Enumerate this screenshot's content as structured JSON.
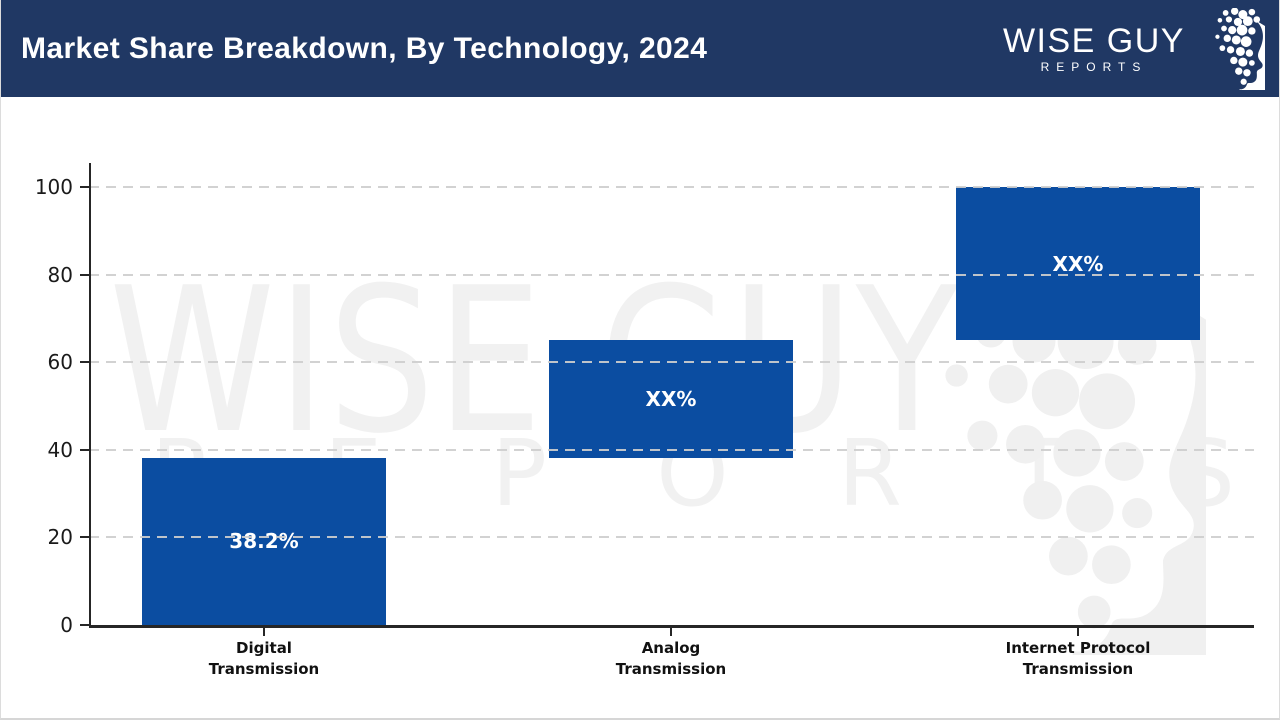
{
  "header": {
    "title": "Market Share Breakdown, By Technology, 2024",
    "logo_wordmark": "WISE GUY",
    "logo_subtext": "REPORTS"
  },
  "watermark": {
    "wordmark": "WISE GUY",
    "subtext": "R E P O R T S"
  },
  "chart_data": {
    "type": "bar",
    "subtype": "floating-segment (waterfall-style) bars",
    "title": "Market Share Breakdown, By Technology, 2024",
    "categories": [
      [
        "Digital",
        "Transmission"
      ],
      [
        "Analog",
        "Transmission"
      ],
      [
        "Internet Protocol",
        "Transmission"
      ]
    ],
    "bars": [
      {
        "category": "Digital Transmission",
        "start": 0,
        "end": 38.2,
        "label": "38.2%"
      },
      {
        "category": "Analog Transmission",
        "start": 38.2,
        "end": 65,
        "label": "XX%"
      },
      {
        "category": "Internet Protocol Transmission",
        "start": 65,
        "end": 100,
        "label": "XX%"
      }
    ],
    "yticks": [
      0,
      20,
      40,
      60,
      80,
      100
    ],
    "ylim": [
      0,
      105
    ],
    "xlabel": "",
    "ylabel": "",
    "legend": "none",
    "grid": "horizontal dashed",
    "colors": {
      "bar": "#0b4da1",
      "bar_label": "#ffffff",
      "grid": "#d2d2d2",
      "axis": "#262626",
      "tick_label": "#1a1a1a",
      "header_bg": "#203864",
      "header_text": "#ffffff",
      "watermark": "#f1f1f1"
    }
  }
}
